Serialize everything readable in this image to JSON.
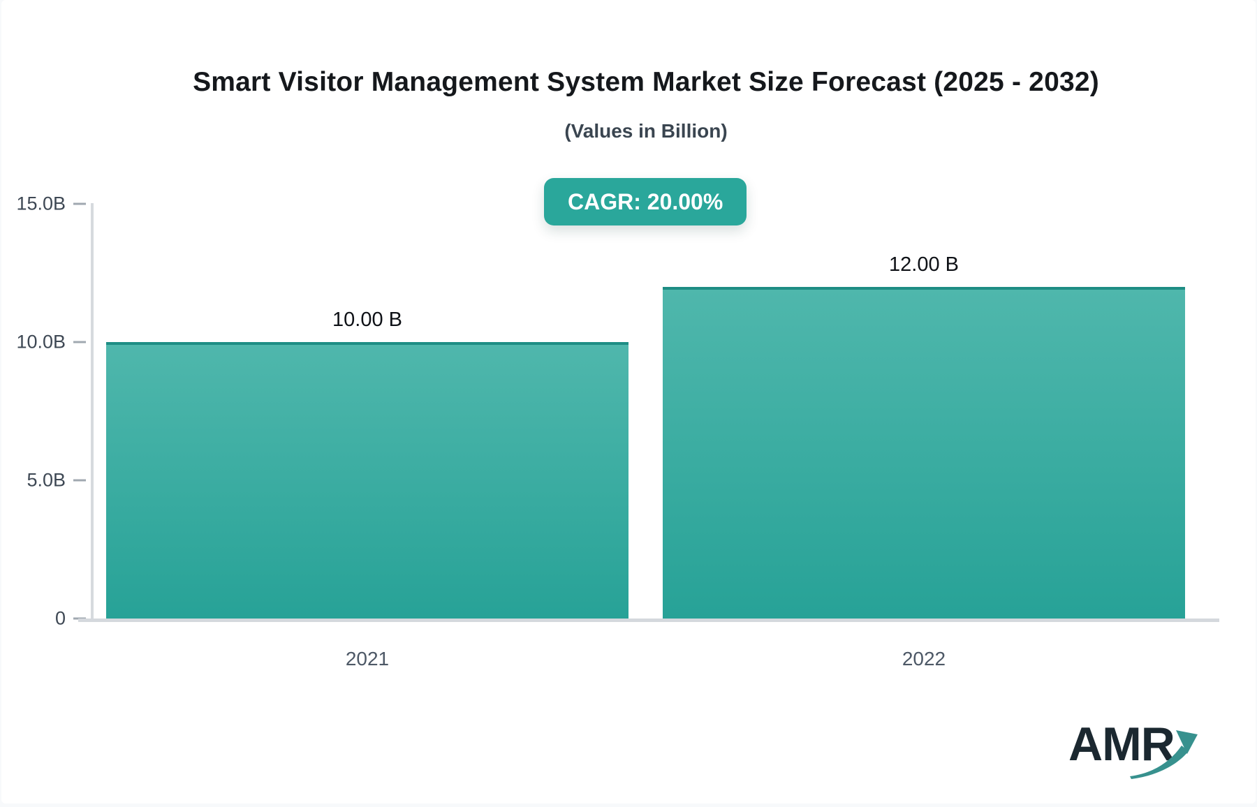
{
  "header": {
    "title": "Smart Visitor Management System Market Size Forecast (2025 - 2032)",
    "subtitle": "(Values in Billion)"
  },
  "badge": {
    "label": "CAGR: 20.00%"
  },
  "chart_data": {
    "type": "bar",
    "title": "Smart Visitor Management System Market Size Forecast (2025 - 2032)",
    "subtitle": "(Values in Billion)",
    "categories": [
      "2021",
      "2022"
    ],
    "values": [
      10.0,
      12.0
    ],
    "value_labels": [
      "10.00 B",
      "12.00 B"
    ],
    "unit": "Billion",
    "cagr": "20.00%",
    "xlabel": "",
    "ylabel": "",
    "ylim": [
      0,
      15
    ],
    "yticks": [
      {
        "label": "15.0B",
        "value": 15
      },
      {
        "label": "10.0B",
        "value": 10
      },
      {
        "label": "5.0B",
        "value": 5
      },
      {
        "label": "0",
        "value": 0
      }
    ],
    "grid": false,
    "legend": false
  },
  "logo": {
    "text": "AMR"
  },
  "colors": {
    "accent": "#2aa79b",
    "bar_gradient_top": "#4fb7ac",
    "bar_gradient_bottom": "#27a297",
    "bar_cap": "#1e8d84",
    "axis_line": "#d6dade",
    "tick_mark": "#a0a8b0",
    "tick_label": "#3e4854",
    "title_text": "#15181c",
    "value_label": "#0e1116",
    "x_label": "#4d5866",
    "badge_bg": "#2aa79b",
    "badge_text": "#ffffff",
    "logo_text": "#1b2830",
    "logo_arrow": "#37918e",
    "page_bg": "#f7f9fb",
    "card_bg": "#ffffff"
  }
}
